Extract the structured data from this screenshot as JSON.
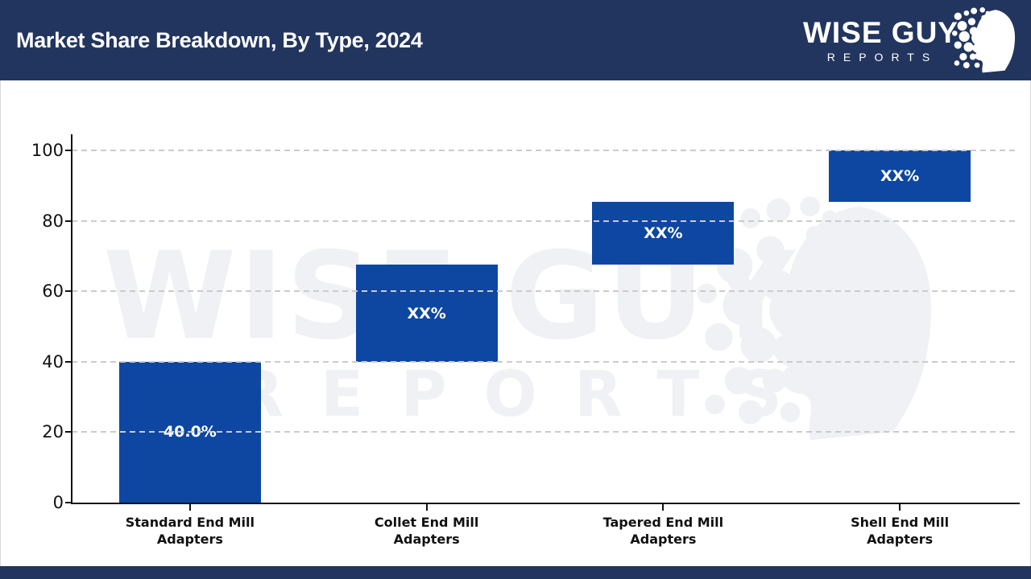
{
  "header": {
    "title": "Market Share Breakdown, By Type, 2024",
    "logo": {
      "wordmark": "WISE GUY",
      "subtext": "REPORTS"
    }
  },
  "watermark": {
    "line1": "WISE GUY",
    "line2": "REPORTS"
  },
  "colors": {
    "header_bg": "#22355e",
    "footer_bg": "#22355e",
    "bar_fill": "#0d47a1",
    "bar_label_text": "#ffffff",
    "gridline": "#cbcbcb",
    "axis": "#111111",
    "watermark": "#eff1f4",
    "title_text": "#ffffff"
  },
  "chart_data": {
    "type": "bar",
    "subtype": "floating-waterfall",
    "title": "Market Share Breakdown, By Type, 2024",
    "xlabel": "",
    "ylabel": "",
    "ylim": [
      0,
      100
    ],
    "yticks": [
      0,
      20,
      40,
      60,
      80,
      100
    ],
    "grid": "dashed-horizontal",
    "legend": "none",
    "categories": [
      "Standard End Mill Adapters",
      "Collet End Mill Adapters",
      "Tapered End Mill Adapters",
      "Shell End Mill Adapters"
    ],
    "bars": [
      {
        "category": "Standard End Mill Adapters",
        "label_lines": [
          "Standard End Mill",
          "Adapters"
        ],
        "start": 0,
        "end": 40,
        "value": 40,
        "label": "40.0%"
      },
      {
        "category": "Collet End Mill Adapters",
        "label_lines": [
          "Collet End Mill",
          "Adapters"
        ],
        "start": 40,
        "end": 67.5,
        "value": 27.5,
        "label": "XX%"
      },
      {
        "category": "Tapered End Mill Adapters",
        "label_lines": [
          "Tapered End Mill",
          "Adapters"
        ],
        "start": 67.5,
        "end": 85.5,
        "value": 18,
        "label": "XX%"
      },
      {
        "category": "Shell End Mill Adapters",
        "label_lines": [
          "Shell End Mill",
          "Adapters"
        ],
        "start": 85.5,
        "end": 100,
        "value": 14.5,
        "label": "XX%"
      }
    ]
  }
}
